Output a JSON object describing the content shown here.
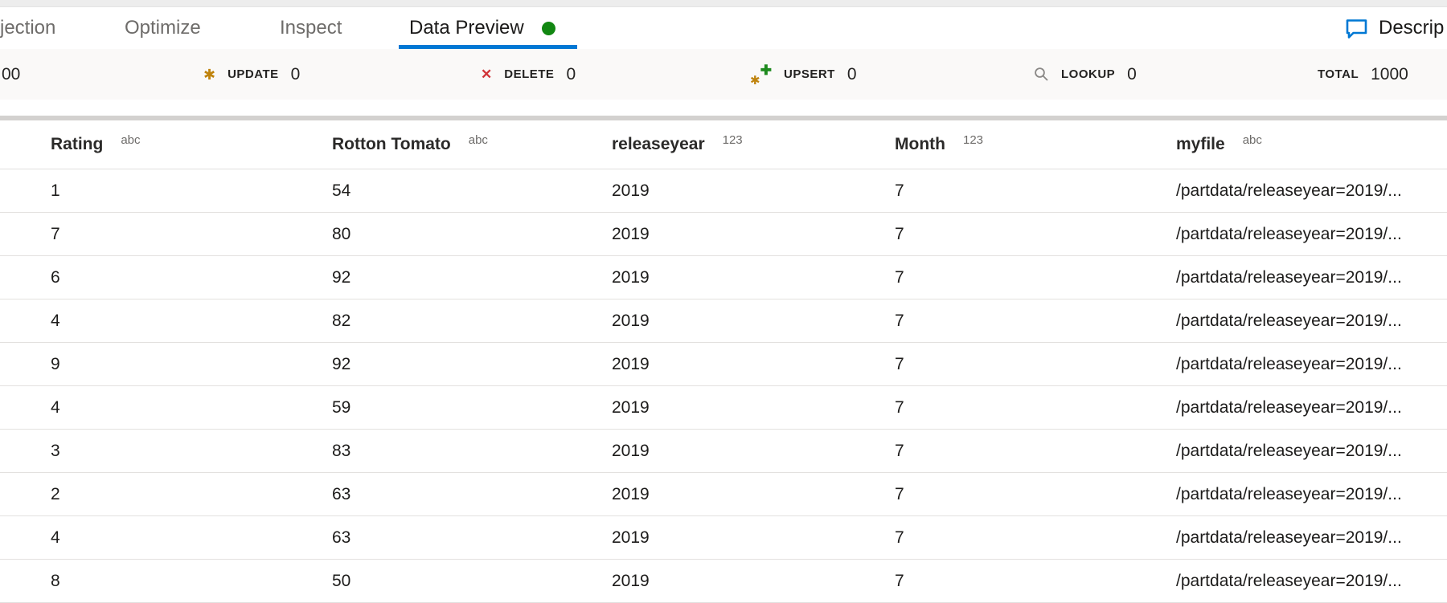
{
  "tabs": {
    "projection": "jection",
    "optimize": "Optimize",
    "inspect": "Inspect",
    "data_preview": "Data Preview",
    "description": "Descrip"
  },
  "icons": {
    "active_tab_dot": "green-circle",
    "description": "comment-bubble",
    "update": "gold-asterisk",
    "delete": "red-x",
    "upsert": "gold-asterisk-green-plus",
    "lookup": "magnifier"
  },
  "colors": {
    "accent_blue": "#0078d4",
    "dot_green": "#128712",
    "asterisk_gold": "#bf830d",
    "delete_red": "#d13438",
    "plus_green": "#1e8a1e",
    "lookup_gray": "#8a8886",
    "statsbar_bg": "#faf9f8"
  },
  "stats": {
    "partial_left_value": "00",
    "update": {
      "label": "UPDATE",
      "value": "0"
    },
    "delete": {
      "label": "DELETE",
      "value": "0"
    },
    "upsert": {
      "label": "UPSERT",
      "value": "0"
    },
    "lookup": {
      "label": "LOOKUP",
      "value": "0"
    },
    "total": {
      "label": "TOTAL",
      "value": "1000"
    }
  },
  "table": {
    "columns": [
      {
        "key": "rating",
        "label": "Rating",
        "type": "abc"
      },
      {
        "key": "rotton-tomato",
        "label": "Rotton Tomato",
        "type": "abc"
      },
      {
        "key": "releaseyear",
        "label": "releaseyear",
        "type": "123"
      },
      {
        "key": "month",
        "label": "Month",
        "type": "123"
      },
      {
        "key": "myfile",
        "label": "myfile",
        "type": "abc"
      }
    ],
    "rows": [
      [
        "1",
        "54",
        "2019",
        "7",
        "/partdata/releaseyear=2019/..."
      ],
      [
        "7",
        "80",
        "2019",
        "7",
        "/partdata/releaseyear=2019/..."
      ],
      [
        "6",
        "92",
        "2019",
        "7",
        "/partdata/releaseyear=2019/..."
      ],
      [
        "4",
        "82",
        "2019",
        "7",
        "/partdata/releaseyear=2019/..."
      ],
      [
        "9",
        "92",
        "2019",
        "7",
        "/partdata/releaseyear=2019/..."
      ],
      [
        "4",
        "59",
        "2019",
        "7",
        "/partdata/releaseyear=2019/..."
      ],
      [
        "3",
        "83",
        "2019",
        "7",
        "/partdata/releaseyear=2019/..."
      ],
      [
        "2",
        "63",
        "2019",
        "7",
        "/partdata/releaseyear=2019/..."
      ],
      [
        "4",
        "63",
        "2019",
        "7",
        "/partdata/releaseyear=2019/..."
      ],
      [
        "8",
        "50",
        "2019",
        "7",
        "/partdata/releaseyear=2019/..."
      ]
    ]
  }
}
